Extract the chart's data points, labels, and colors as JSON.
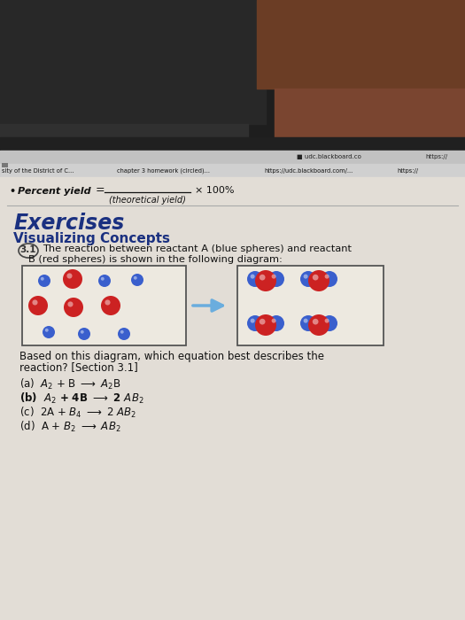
{
  "bg_dark": "#1a1a1a",
  "bg_photo_left": "#2e2e2e",
  "bg_photo_right": "#5a3020",
  "browser_chrome_color": "#c8c8c8",
  "browser_tab_bar": "#d8d8d8",
  "browser_url_bar": "#bebebe",
  "page_bg": "#e2ddd6",
  "page_content_bg": "#e8e4dc",
  "separator_color": "#999999",
  "exercises_color": "#1a3080",
  "visualizing_color": "#1a3080",
  "text_color": "#111111",
  "blue_sphere": "#3a5fcd",
  "red_sphere": "#cc2222",
  "arrow_color": "#6aadde",
  "box_bg": "#ede9e0",
  "box_border": "#555555",
  "url_text": "■ udc.blackboard.co",
  "tab1": "sity of the District of C...",
  "tab2": "chapter 3 homework (circled)...",
  "tab3": "https://udc.blackboard.com/...",
  "tab4": "https://",
  "percent_yield_text": "Percent yield",
  "denominator_text": "(theoretical yield)",
  "x100_text": "× 100%",
  "exercises_text": "Exercises",
  "visualizing_text": "Visualizing Concepts",
  "prob_num": "3.1",
  "prob_line1": "The reaction between reactant A (blue spheres) and reactant",
  "prob_line2": "B (red spheres) is shown in the following diagram:",
  "question_line1": "Based on this diagram, which equation best describes the",
  "question_line2": "reaction? [Section 3.1]",
  "figw": 5.25,
  "figh": 7.0,
  "dpi": 100
}
